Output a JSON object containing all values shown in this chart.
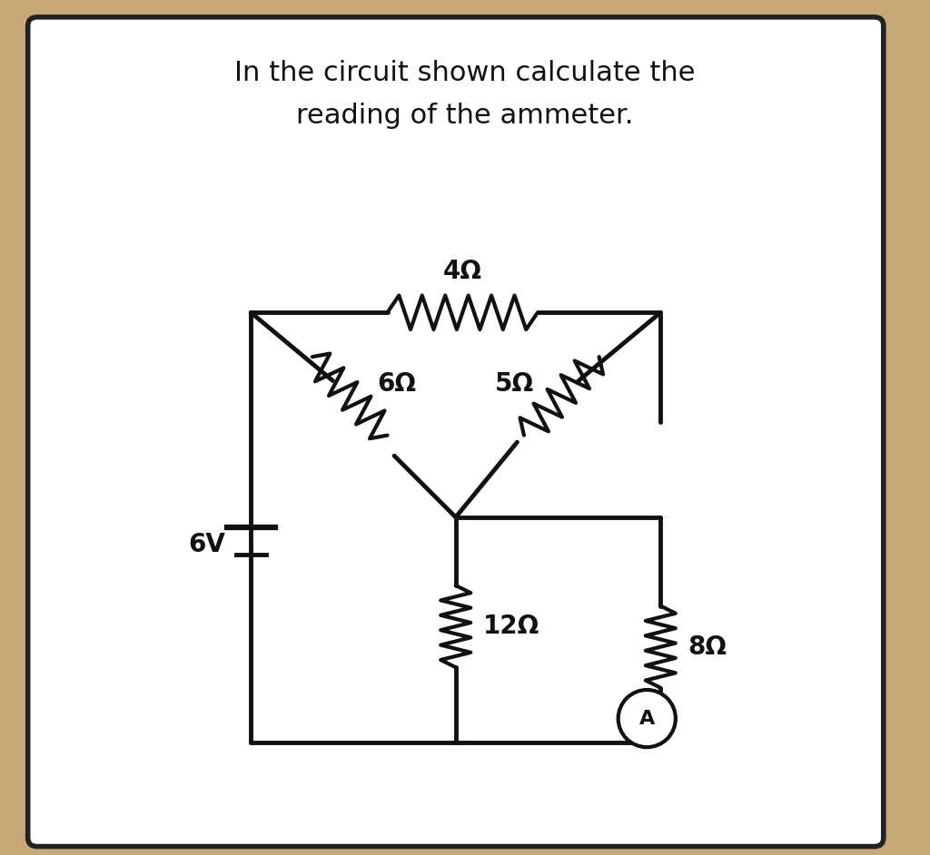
{
  "title_line1": "In the circuit shown calculate the",
  "title_line2": "reading of the ammeter.",
  "bg_color": "#f0f0f0",
  "panel_color": "#e8e8e8",
  "wire_color": "#111111",
  "lw": 3.5,
  "resistor_4": "4Ω",
  "resistor_6": "6Ω",
  "resistor_5": "5Ω",
  "resistor_8": "8Ω",
  "resistor_12": "12Ω",
  "battery_label": "6V",
  "ammeter_label": "A"
}
